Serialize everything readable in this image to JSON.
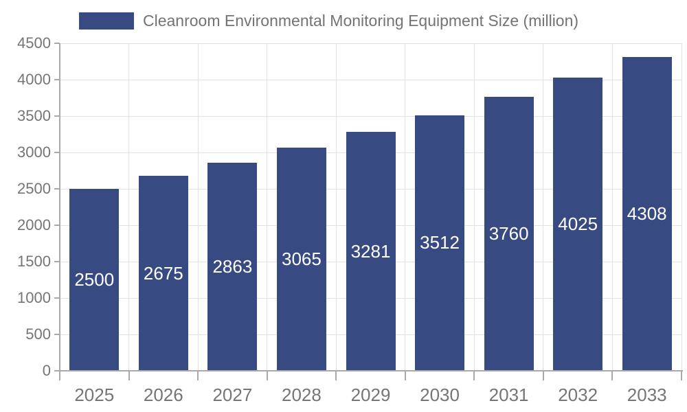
{
  "chart_data": {
    "type": "bar",
    "title": "Cleanroom Environmental Monitoring Equipment Size (million)",
    "categories": [
      "2025",
      "2026",
      "2027",
      "2028",
      "2029",
      "2030",
      "2031",
      "2032",
      "2033"
    ],
    "values": [
      2500,
      2675,
      2863,
      3065,
      3281,
      3512,
      3760,
      4025,
      4308
    ],
    "xlabel": "",
    "ylabel": "",
    "ylim": [
      0,
      4500
    ],
    "yticks": [
      0,
      500,
      1000,
      1500,
      2000,
      2500,
      3000,
      3500,
      4000,
      4500
    ],
    "grid": true,
    "legend_position": "top-left",
    "value_label_position": "inside-center",
    "colors": {
      "bar": "#384A82",
      "grid": "#e2e2e2",
      "axis": "#a9a9a9",
      "text": "#757575",
      "value_label": "#ffffff",
      "background": "#ffffff"
    }
  }
}
